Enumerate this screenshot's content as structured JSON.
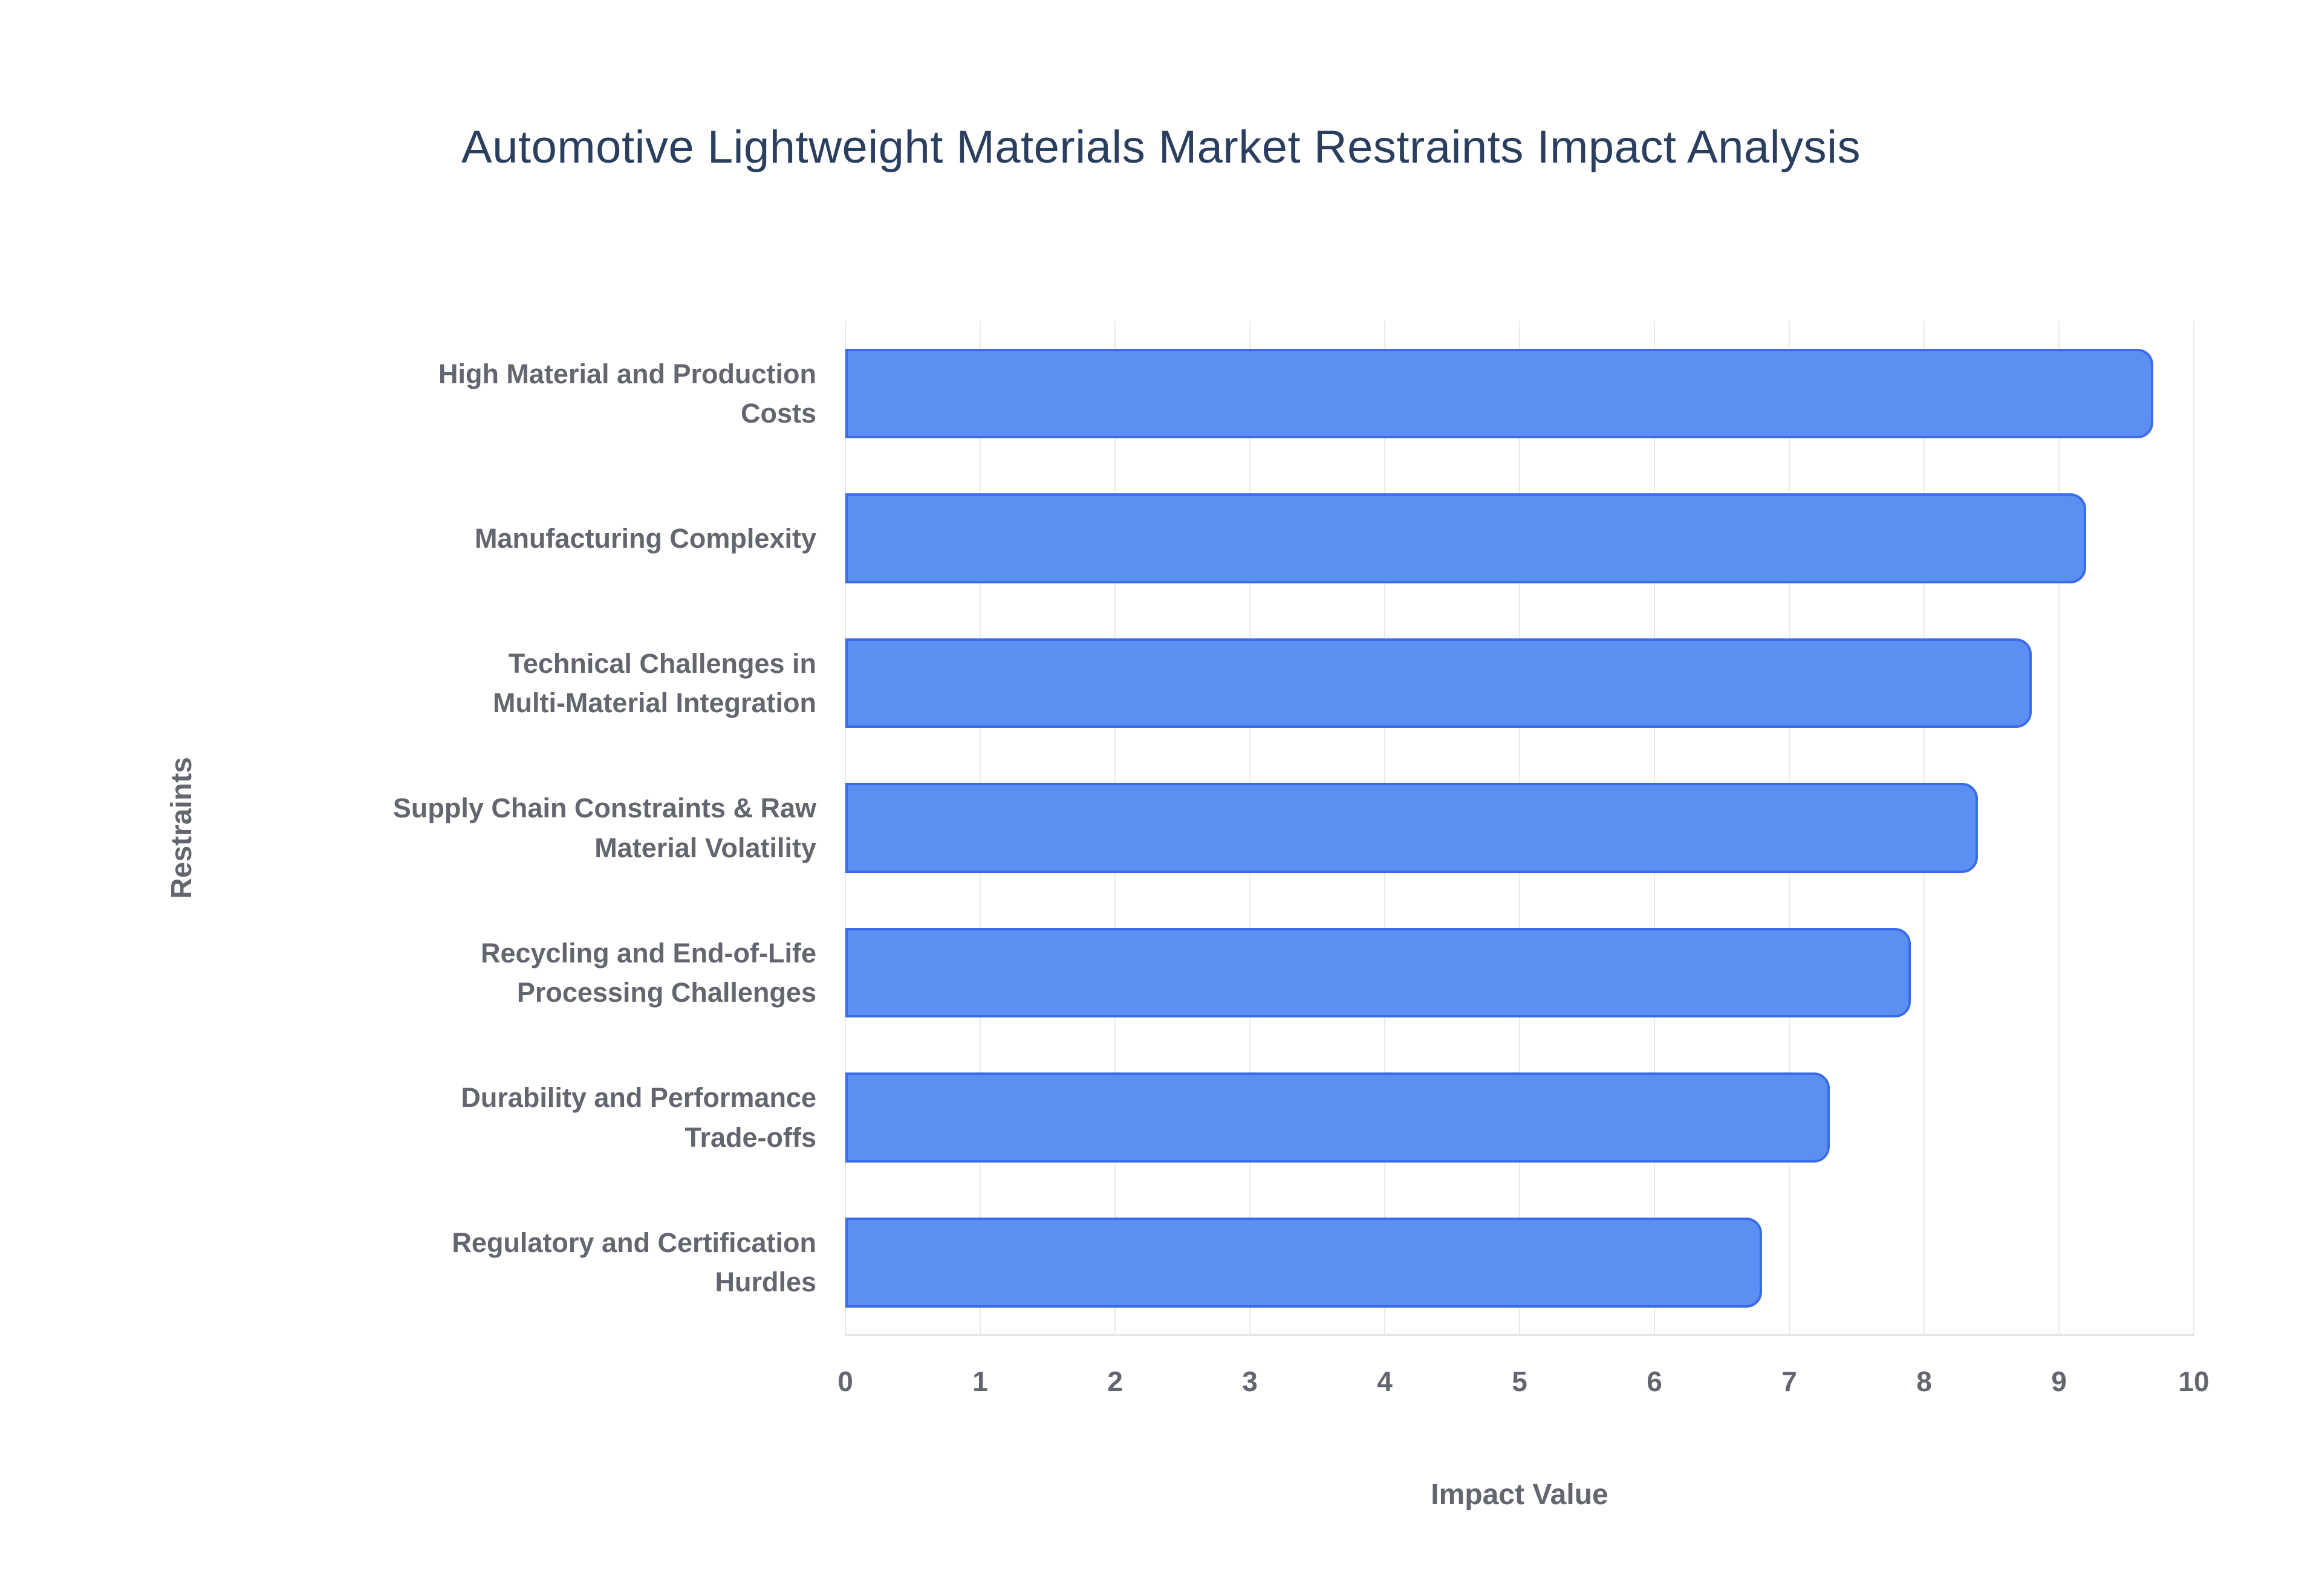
{
  "title": "Automotive Lightweight Materials Market Restraints Impact Analysis",
  "chart_data": {
    "type": "bar",
    "orientation": "horizontal",
    "title": "Automotive Lightweight Materials Market Restraints Impact Analysis",
    "xlabel": "Impact Value",
    "ylabel": "Restraints",
    "xlim": [
      0,
      10
    ],
    "xticks": [
      0,
      1,
      2,
      3,
      4,
      5,
      6,
      7,
      8,
      9,
      10
    ],
    "grid": true,
    "legend": "none",
    "categories": [
      "High Material and Production\nCosts",
      "Manufacturing Complexity",
      "Technical Challenges in\nMulti-Material Integration",
      "Supply Chain Constraints & Raw\nMaterial Volatility",
      "Recycling and End-of-Life\nProcessing Challenges",
      "Durability and Performance\nTrade-offs",
      "Regulatory and Certification\nHurdles"
    ],
    "values": [
      9.7,
      9.2,
      8.8,
      8.4,
      7.9,
      7.3,
      6.8
    ],
    "colors": {
      "bar_fill": "#5b8ff2",
      "bar_border": "#3b6be8",
      "title_text": "#2a3f5f",
      "axis_text": "#63666e",
      "gridline": "#e8eaed",
      "background": "#ffffff"
    }
  }
}
